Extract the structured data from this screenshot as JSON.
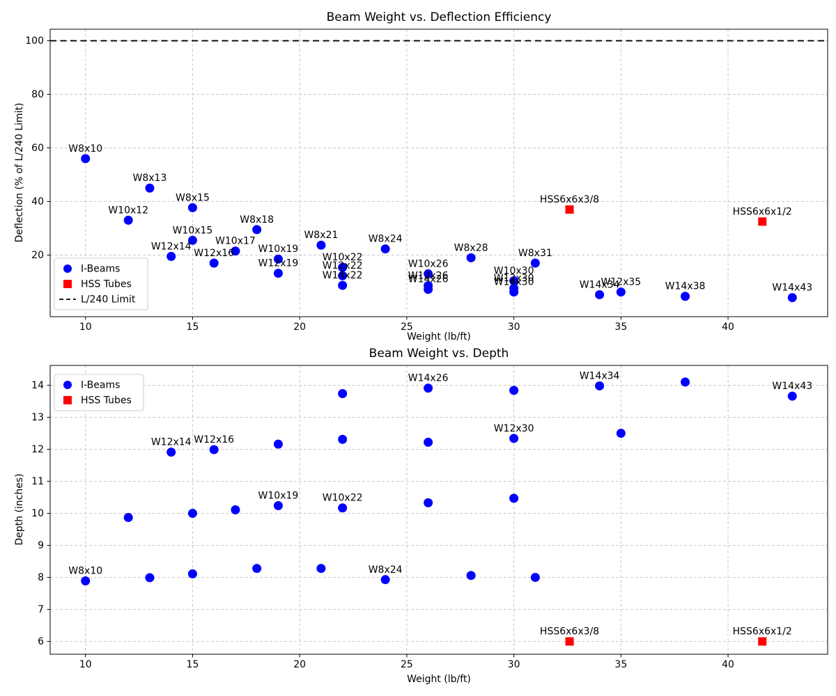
{
  "figure": {
    "background_color": "#ffffff"
  },
  "chart_data": [
    {
      "type": "scatter",
      "title": "Beam Weight vs. Deflection Efficiency",
      "xlabel": "Weight (lb/ft)",
      "ylabel": "Deflection (% of L/240 Limit)",
      "xlim": [
        8.35,
        44.65
      ],
      "ylim": [
        -3,
        104.3
      ],
      "xticks": [
        10,
        15,
        20,
        25,
        30,
        35,
        40
      ],
      "yticks": [
        20,
        40,
        60,
        80,
        100
      ],
      "grid": true,
      "grid_style": "dashed",
      "legend_position": "lower-left",
      "legend": [
        {
          "label": "I-Beams",
          "marker": "circle",
          "color": "#0000ff"
        },
        {
          "label": "HSS Tubes",
          "marker": "square",
          "color": "#ff0000"
        },
        {
          "label": "L/240 Limit",
          "marker": "dashed-line",
          "color": "#000000"
        }
      ],
      "limit_line": {
        "y": 100,
        "label": "L/240 Limit",
        "color": "#000000",
        "style": "dashed"
      },
      "series": [
        {
          "name": "I-Beams",
          "marker": "circle",
          "color": "#0000ff",
          "points": [
            {
              "label": "W8x10",
              "x": 10,
              "y": 56.0,
              "annotated": true
            },
            {
              "label": "W10x12",
              "x": 12,
              "y": 33.0,
              "annotated": true
            },
            {
              "label": "W8x13",
              "x": 13,
              "y": 45.0,
              "annotated": true
            },
            {
              "label": "W12x14",
              "x": 14,
              "y": 19.5,
              "annotated": true
            },
            {
              "label": "W8x15",
              "x": 15,
              "y": 37.7,
              "annotated": true
            },
            {
              "label": "W10x15",
              "x": 15,
              "y": 25.5,
              "annotated": true
            },
            {
              "label": "W12x16",
              "x": 16,
              "y": 17.0,
              "annotated": true
            },
            {
              "label": "W10x17",
              "x": 17,
              "y": 21.5,
              "annotated": true
            },
            {
              "label": "W8x18",
              "x": 18,
              "y": 29.5,
              "annotated": true
            },
            {
              "label": "W10x19",
              "x": 19,
              "y": 18.5,
              "annotated": true
            },
            {
              "label": "W12x19",
              "x": 19,
              "y": 13.2,
              "annotated": true
            },
            {
              "label": "W8x21",
              "x": 21,
              "y": 23.7,
              "annotated": true
            },
            {
              "label": "W10x22",
              "x": 22,
              "y": 15.4,
              "annotated": true
            },
            {
              "label": "W12x22",
              "x": 22,
              "y": 12.3,
              "annotated": true
            },
            {
              "label": "W14x22",
              "x": 22,
              "y": 8.7,
              "annotated": true
            },
            {
              "label": "W8x24",
              "x": 24,
              "y": 22.3,
              "annotated": true
            },
            {
              "label": "W10x26",
              "x": 26,
              "y": 13.0,
              "annotated": true
            },
            {
              "label": "W12x26",
              "x": 26,
              "y": 8.6,
              "annotated": true
            },
            {
              "label": "W14x26",
              "x": 26,
              "y": 7.2,
              "annotated": true
            },
            {
              "label": "W8x28",
              "x": 28,
              "y": 19.0,
              "annotated": true
            },
            {
              "label": "W10x30",
              "x": 30,
              "y": 10.4,
              "annotated": true
            },
            {
              "label": "W12x30",
              "x": 30,
              "y": 7.6,
              "annotated": true
            },
            {
              "label": "W14x30",
              "x": 30,
              "y": 6.2,
              "annotated": true
            },
            {
              "label": "W8x31",
              "x": 31,
              "y": 17.0,
              "annotated": true
            },
            {
              "label": "W14x34",
              "x": 34,
              "y": 5.2,
              "annotated": true
            },
            {
              "label": "W12x35",
              "x": 35,
              "y": 6.2,
              "annotated": true
            },
            {
              "label": "W14x38",
              "x": 38,
              "y": 4.6,
              "annotated": true
            },
            {
              "label": "W14x43",
              "x": 43,
              "y": 4.1,
              "annotated": true
            }
          ]
        },
        {
          "name": "HSS Tubes",
          "marker": "square",
          "color": "#ff0000",
          "points": [
            {
              "label": "HSS6x6x3/8",
              "x": 32.6,
              "y": 37.0,
              "annotated": true
            },
            {
              "label": "HSS6x6x1/2",
              "x": 41.6,
              "y": 32.5,
              "annotated": true
            }
          ]
        }
      ]
    },
    {
      "type": "scatter",
      "title": "Beam Weight vs. Depth",
      "xlabel": "Weight (lb/ft)",
      "ylabel": "Depth (inches)",
      "xlim": [
        8.35,
        44.65
      ],
      "ylim": [
        5.6,
        14.62
      ],
      "xticks": [
        10,
        15,
        20,
        25,
        30,
        35,
        40
      ],
      "yticks": [
        6,
        7,
        8,
        9,
        10,
        11,
        12,
        13,
        14
      ],
      "grid": true,
      "grid_style": "dashed",
      "legend_position": "upper-left",
      "legend": [
        {
          "label": "I-Beams",
          "marker": "circle",
          "color": "#0000ff"
        },
        {
          "label": "HSS Tubes",
          "marker": "square",
          "color": "#ff0000"
        }
      ],
      "series": [
        {
          "name": "I-Beams",
          "marker": "circle",
          "color": "#0000ff",
          "points": [
            {
              "label": "W8x10",
              "x": 10,
              "y": 7.89,
              "annotated": true
            },
            {
              "label": "W10x12",
              "x": 12,
              "y": 9.87,
              "annotated": false
            },
            {
              "label": "W8x13",
              "x": 13,
              "y": 7.99,
              "annotated": false
            },
            {
              "label": "W12x14",
              "x": 14,
              "y": 11.91,
              "annotated": true
            },
            {
              "label": "W8x15",
              "x": 15,
              "y": 8.11,
              "annotated": false
            },
            {
              "label": "W10x15",
              "x": 15,
              "y": 10.0,
              "annotated": false
            },
            {
              "label": "W12x16",
              "x": 16,
              "y": 11.99,
              "annotated": true
            },
            {
              "label": "W10x17",
              "x": 17,
              "y": 10.11,
              "annotated": false
            },
            {
              "label": "W8x18",
              "x": 18,
              "y": 8.28,
              "annotated": false
            },
            {
              "label": "W10x19",
              "x": 19,
              "y": 10.24,
              "annotated": true
            },
            {
              "label": "W12x19",
              "x": 19,
              "y": 12.16,
              "annotated": false
            },
            {
              "label": "W8x21",
              "x": 21,
              "y": 8.28,
              "annotated": false
            },
            {
              "label": "W10x22",
              "x": 22,
              "y": 10.17,
              "annotated": true
            },
            {
              "label": "W12x22",
              "x": 22,
              "y": 12.31,
              "annotated": false
            },
            {
              "label": "W14x22",
              "x": 22,
              "y": 13.74,
              "annotated": false
            },
            {
              "label": "W8x24",
              "x": 24,
              "y": 7.93,
              "annotated": true
            },
            {
              "label": "W10x26",
              "x": 26,
              "y": 10.33,
              "annotated": false
            },
            {
              "label": "W12x26",
              "x": 26,
              "y": 12.22,
              "annotated": false
            },
            {
              "label": "W14x26",
              "x": 26,
              "y": 13.91,
              "annotated": true
            },
            {
              "label": "W8x28",
              "x": 28,
              "y": 8.06,
              "annotated": false
            },
            {
              "label": "W10x30",
              "x": 30,
              "y": 10.47,
              "annotated": false
            },
            {
              "label": "W12x30",
              "x": 30,
              "y": 12.34,
              "annotated": true
            },
            {
              "label": "W14x30",
              "x": 30,
              "y": 13.84,
              "annotated": false
            },
            {
              "label": "W8x31",
              "x": 31,
              "y": 8.0,
              "annotated": false
            },
            {
              "label": "W14x34",
              "x": 34,
              "y": 13.98,
              "annotated": true
            },
            {
              "label": "W12x35",
              "x": 35,
              "y": 12.5,
              "annotated": false
            },
            {
              "label": "W14x38",
              "x": 38,
              "y": 14.1,
              "annotated": false
            },
            {
              "label": "W14x43",
              "x": 43,
              "y": 13.66,
              "annotated": true
            }
          ]
        },
        {
          "name": "HSS Tubes",
          "marker": "square",
          "color": "#ff0000",
          "points": [
            {
              "label": "HSS6x6x3/8",
              "x": 32.6,
              "y": 6.0,
              "annotated": true
            },
            {
              "label": "HSS6x6x1/2",
              "x": 41.6,
              "y": 6.0,
              "annotated": true
            }
          ]
        }
      ]
    }
  ]
}
